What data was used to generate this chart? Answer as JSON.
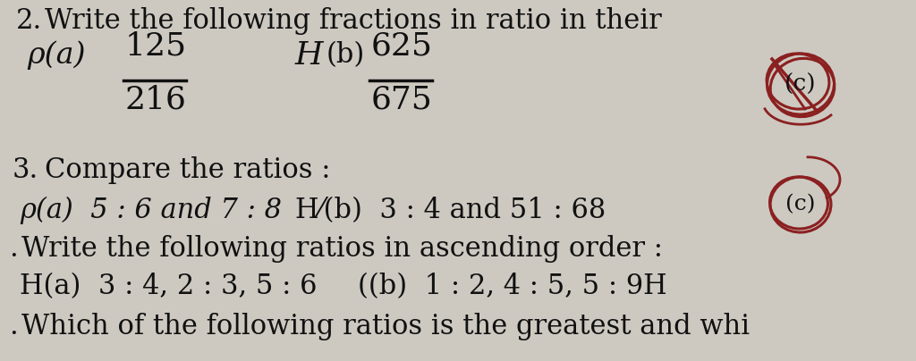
{
  "bg_color": "#cdc9c1",
  "text_color": "#111111",
  "circle_color": "#8b2020",
  "figsize": [
    10.24,
    4.04
  ],
  "dpi": 100,
  "lines": {
    "heading": "2.  Write the following fractions in ratio in their",
    "num_a": "125",
    "den_a": "216",
    "num_b": "625",
    "den_b": "675",
    "compare": "3.  Compare the ratios :",
    "ratios_a": "(a)  5 : 6 and 7 : 8",
    "ratios_b": "(b)  3 : 4 and 51 : 68",
    "ascending": ".  Write the following ratios in ascending order :",
    "asc_a": "(a)  3 : 4, 2 : 3, 5 : 6",
    "asc_b": "(b)  1 : 2, 4 : 5, 5 : 9",
    "which": ".  Which of the following ratios is the greatest and whi"
  }
}
